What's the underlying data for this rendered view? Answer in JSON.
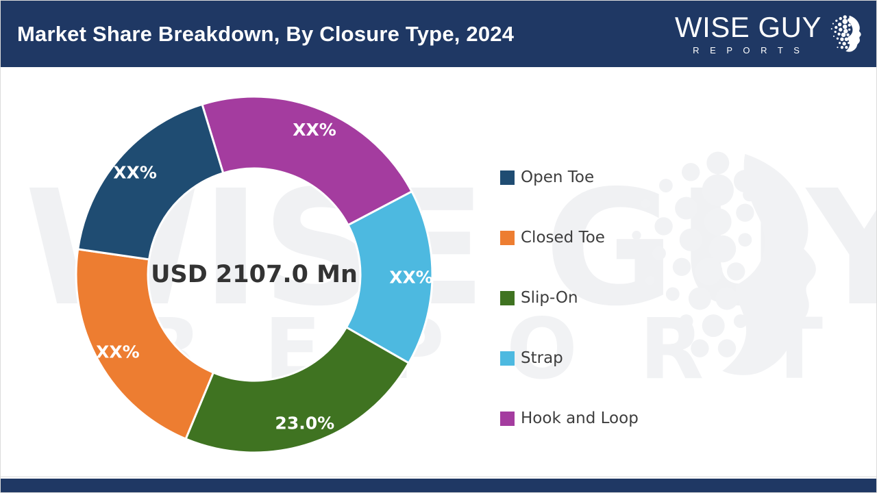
{
  "header": {
    "title": "Market Share Breakdown, By Closure Type, 2024",
    "logo": {
      "line1": "WISE GUY",
      "line2": "R E P O R T S"
    }
  },
  "colors": {
    "brand_navy": "#1F3864",
    "open_toe": "#1F4C72",
    "closed_toe": "#ED7D31",
    "slip_on": "#3F7321",
    "strap": "#4DB9E0",
    "hook_and_loop": "#A43C9F",
    "divider_gray": "#D9D9D9",
    "watermark_gray": "#F1F2F4"
  },
  "chart_data": {
    "type": "pie",
    "subtype": "donut",
    "title": "Market Share Breakdown, By Closure Type, 2024",
    "center_label": "USD 2107.0 Mn",
    "start_angle_deg": -17,
    "direction": "clockwise",
    "legend_position": "right",
    "slices": [
      {
        "name": "Hook and Loop",
        "label": "XX%",
        "value_pct": 22,
        "color": "#A43C9F"
      },
      {
        "name": "Strap",
        "label": "XX%",
        "value_pct": 16,
        "color": "#4DB9E0"
      },
      {
        "name": "Slip-On",
        "label": "23.0%",
        "value_pct": 23,
        "color": "#3F7321"
      },
      {
        "name": "Closed Toe",
        "label": "XX%",
        "value_pct": 21,
        "color": "#ED7D31"
      },
      {
        "name": "Open Toe",
        "label": "XX%",
        "value_pct": 18,
        "color": "#1F4C72"
      }
    ]
  },
  "legend": {
    "items": [
      {
        "label": "Open Toe",
        "color": "#1F4C72"
      },
      {
        "label": "Closed Toe",
        "color": "#ED7D31"
      },
      {
        "label": "Slip-On",
        "color": "#3F7321"
      },
      {
        "label": "Strap",
        "color": "#4DB9E0"
      },
      {
        "label": "Hook and Loop",
        "color": "#A43C9F"
      }
    ]
  },
  "watermark": {
    "line1": "WISE GUY",
    "line2": "R E P O R T S"
  }
}
